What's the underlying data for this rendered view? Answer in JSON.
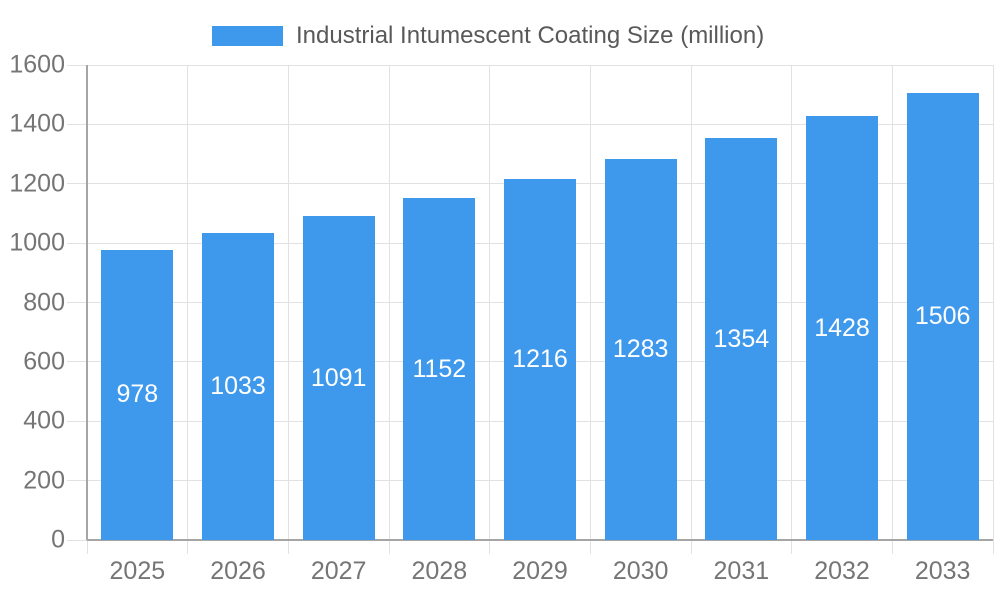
{
  "chart_data": {
    "type": "bar",
    "title": "Industrial Intumescent Coating Size (million)",
    "categories": [
      "2025",
      "2026",
      "2027",
      "2028",
      "2029",
      "2030",
      "2031",
      "2032",
      "2033"
    ],
    "values": [
      978,
      1033,
      1091,
      1152,
      1216,
      1283,
      1354,
      1428,
      1506
    ],
    "xlabel": "",
    "ylabel": "",
    "ylim": [
      0,
      1600
    ],
    "y_ticks": [
      0,
      200,
      400,
      600,
      800,
      1000,
      1200,
      1400,
      1600
    ],
    "grid": true,
    "legend_position": "top",
    "value_labels": "inside-center",
    "colors": {
      "bar": "#3E99ED",
      "value_label": "#ffffff",
      "grid": "#e2e2e2",
      "axis": "#a5a5a5",
      "tick_text": "#757575",
      "legend_text": "#595959"
    }
  }
}
